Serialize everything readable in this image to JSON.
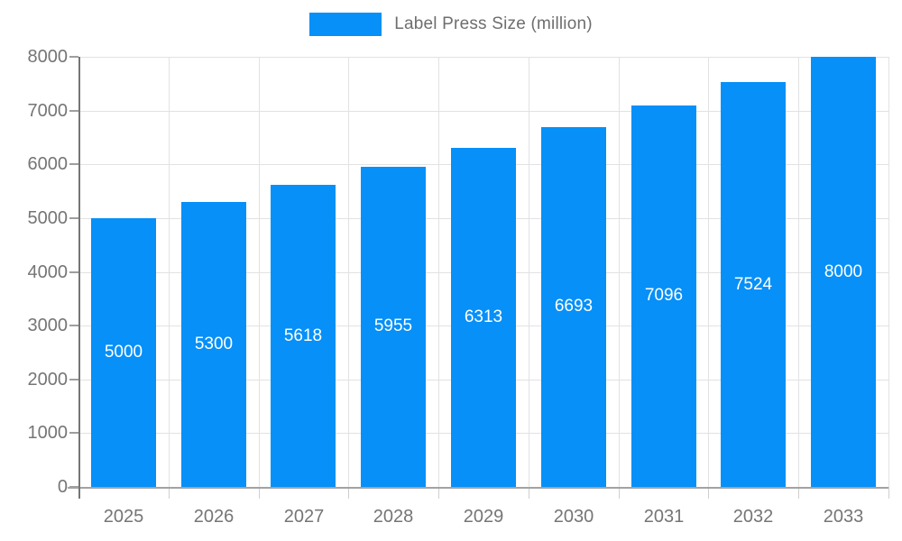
{
  "legend": {
    "label": "Label Press Size (million)"
  },
  "chart_data": {
    "type": "bar",
    "title": "",
    "xlabel": "",
    "ylabel": "",
    "categories": [
      "2025",
      "2026",
      "2027",
      "2028",
      "2029",
      "2030",
      "2031",
      "2032",
      "2033"
    ],
    "series": [
      {
        "name": "Label Press Size (million)",
        "values": [
          5000,
          5300,
          5618,
          5955,
          6313,
          6693,
          7096,
          7524,
          8000
        ]
      }
    ],
    "value_labels": [
      "5000",
      "5300",
      "5618",
      "5955",
      "6313",
      "6693",
      "7096",
      "7524",
      "8000"
    ],
    "ylim": [
      0,
      8000
    ],
    "yticks": [
      0,
      1000,
      2000,
      3000,
      4000,
      5000,
      6000,
      7000,
      8000
    ],
    "grid": true,
    "legend_position": "top-center",
    "colors": {
      "bar": "#0690f8",
      "value_label": "#ffffff",
      "grid_line": "#e2e2e2",
      "axis_line": "#757575",
      "baseline": "#a2a2a2",
      "tick_label": "#757575",
      "legend_text": "#6e6e6e"
    }
  }
}
